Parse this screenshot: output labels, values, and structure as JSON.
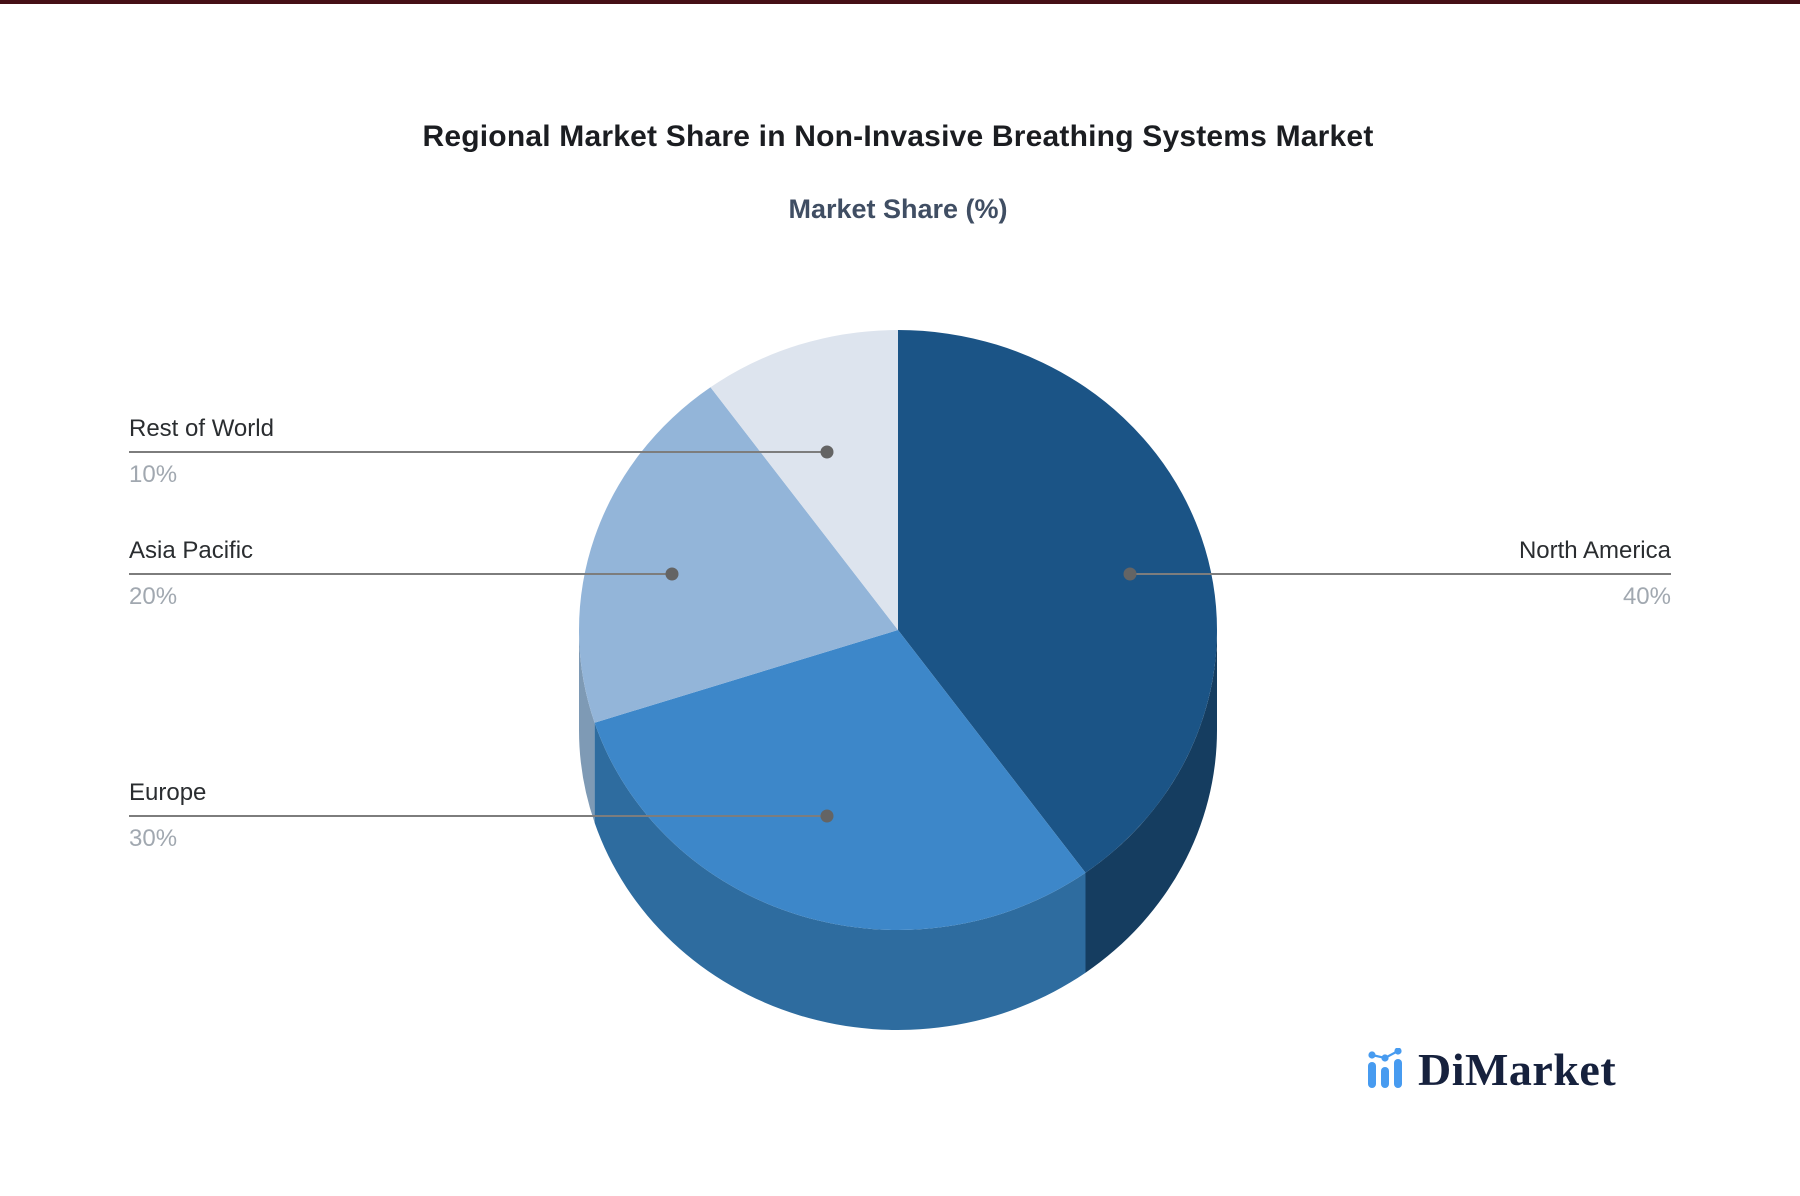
{
  "header": {
    "title": "Regional Market Share in Non-Invasive Breathing Systems Market",
    "subtitle": "Market Share (%)"
  },
  "chart_data": {
    "type": "pie",
    "style": "3d",
    "title": "Regional Market Share in Non-Invasive Breathing Systems Market",
    "subtitle": "Market Share (%)",
    "unit": "%",
    "direction": "clockwise",
    "start_angle_deg": 0,
    "legend": "none",
    "leader_lines": true,
    "slices": [
      {
        "label": "North America",
        "value": 40,
        "display": "40%",
        "color": "#1b5486",
        "side_color": "#153d60",
        "label_side": "right"
      },
      {
        "label": "Europe",
        "value": 30,
        "display": "30%",
        "color": "#3d87c9",
        "side_color": "#2e6c9f",
        "label_side": "left"
      },
      {
        "label": "Asia Pacific",
        "value": 20,
        "display": "20%",
        "color": "#93b5d9",
        "side_color": "#7e9ab5",
        "label_side": "left"
      },
      {
        "label": "Rest of World",
        "value": 10,
        "display": "10%",
        "color": "#dde4ee",
        "side_color": "#b9c6d6",
        "label_side": "left"
      }
    ]
  },
  "branding": {
    "logo_text": "DiMarket",
    "logo_icon": "bar-line-chart-icon",
    "logo_icon_color": "#479bf0",
    "logo_text_color": "#16213d"
  },
  "colors": {
    "title": "#1b1d21",
    "subtitle": "#404e63",
    "label_name": "#2a2d30",
    "label_value": "#a1a8b0",
    "leader_line": "#7d7d7d",
    "leader_dot": "#646464"
  }
}
